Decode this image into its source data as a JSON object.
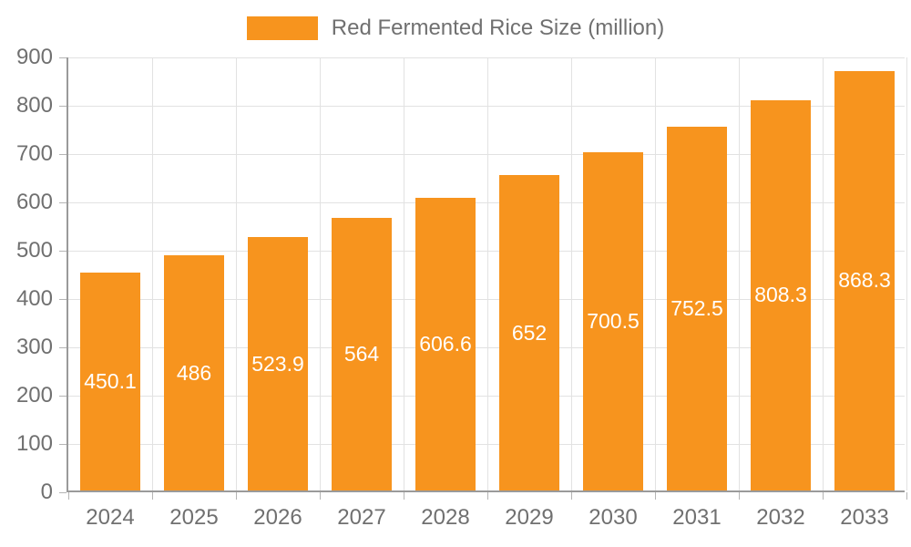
{
  "chart_data": {
    "type": "bar",
    "title": "Red Fermented Rice Size (million)",
    "legend_entries": [
      "Red Fermented Rice Size (million)"
    ],
    "legend_position": "top-center",
    "categories": [
      "2024",
      "2025",
      "2026",
      "2027",
      "2028",
      "2029",
      "2030",
      "2031",
      "2032",
      "2033"
    ],
    "values": [
      450.1,
      486,
      523.9,
      564,
      606.6,
      652,
      700.5,
      752.5,
      808.3,
      868.3
    ],
    "xlabel": "",
    "ylabel": "",
    "ylim": [
      0,
      900
    ],
    "ytick_interval": 100,
    "yticks": [
      0,
      100,
      200,
      300,
      400,
      500,
      600,
      700,
      800,
      900
    ],
    "grid": true,
    "grid_vertical": true,
    "bar_color": "#f7941e",
    "bar_label_color": "#ffffff",
    "axis_text_color": "#707070",
    "axis_line_color": "#9a9a9a",
    "gridline_color": "#e2e2e2"
  }
}
